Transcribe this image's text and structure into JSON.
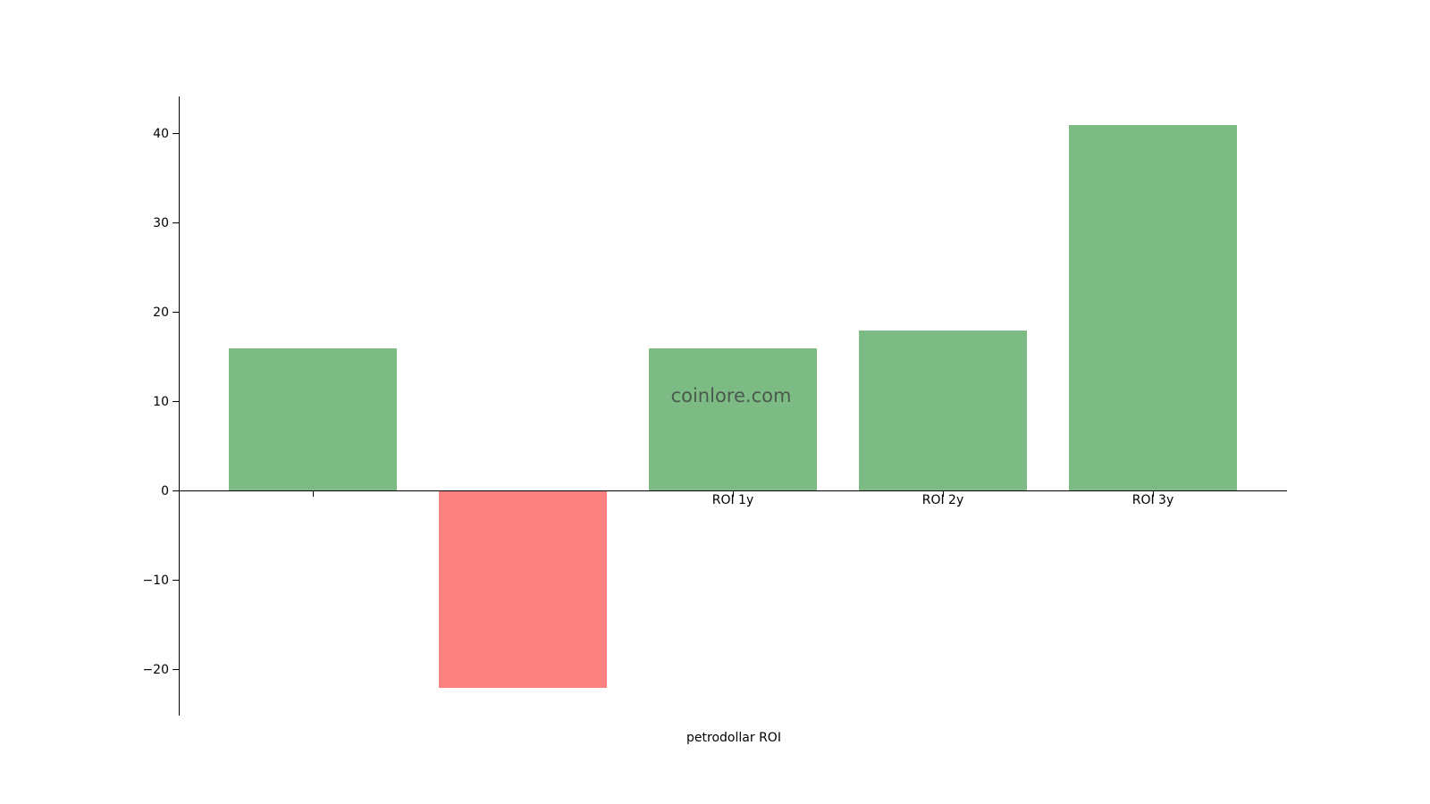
{
  "watermark": "coinlore.com",
  "chart_data": {
    "type": "bar",
    "title": "",
    "xlabel": "petrodollar ROI",
    "ylabel": "",
    "categories": [
      "",
      "",
      "ROI 1y",
      "ROI 2y",
      "ROI 3y"
    ],
    "values": [
      16,
      -22,
      16,
      18,
      41
    ],
    "series": [
      {
        "name": "petrodollar ROI",
        "values": [
          16,
          -22,
          16,
          18,
          41
        ]
      }
    ],
    "positive_color": "#7cbc84",
    "negative_color": "#fd8181",
    "axis_color": "#000000",
    "yticks": [
      40,
      30,
      20,
      10,
      0,
      -10,
      -20
    ],
    "ylim": [
      -25.15,
      44.15
    ],
    "xlim": [
      -0.64,
      4.64
    ],
    "grid": false,
    "legend": false,
    "bar_width_fraction": 0.8
  }
}
